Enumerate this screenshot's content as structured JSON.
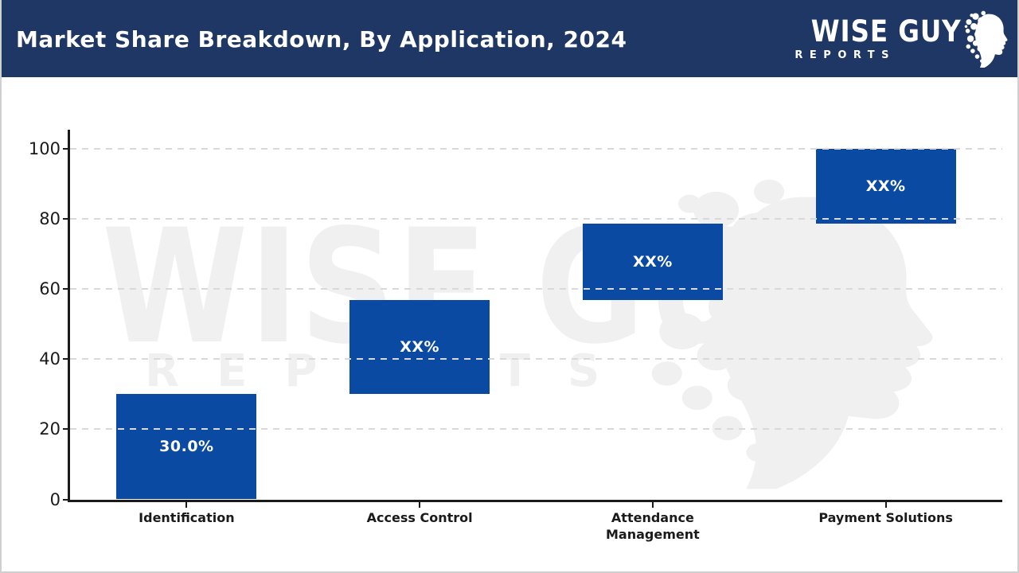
{
  "header": {
    "title": "Market Share Breakdown, By Application, 2024",
    "bg_color": "#1f3764",
    "logo": {
      "wordmark": "WISE GUY",
      "subtext": "REPORTS"
    }
  },
  "watermark": {
    "line1": "WISE GUY",
    "line2": "REPORTS"
  },
  "chart_data": {
    "type": "bar",
    "subtype": "waterfall",
    "title": "Market Share Breakdown, By Application, 2024",
    "xlabel": "",
    "ylabel": "",
    "ylim": [
      0,
      105
    ],
    "yticks": [
      0,
      20,
      40,
      60,
      80,
      100
    ],
    "grid": true,
    "grid_style": "dashed",
    "grid_color": "#d9d9d9",
    "legend": "none",
    "bar_color": "#0b4aa2",
    "label_color": "#ffffff",
    "categories": [
      "Identification",
      "Access Control",
      "Attendance\nManagement",
      "Payment Solutions"
    ],
    "bars": [
      {
        "category": "Identification",
        "start": 0,
        "end": 30,
        "label": "30.0%"
      },
      {
        "category": "Access Control",
        "start": 30,
        "end": 56.8,
        "label": "XX%"
      },
      {
        "category": "Attendance\nManagement",
        "start": 56.8,
        "end": 78.6,
        "label": "XX%"
      },
      {
        "category": "Payment Solutions",
        "start": 78.6,
        "end": 100,
        "label": "XX%"
      }
    ]
  }
}
